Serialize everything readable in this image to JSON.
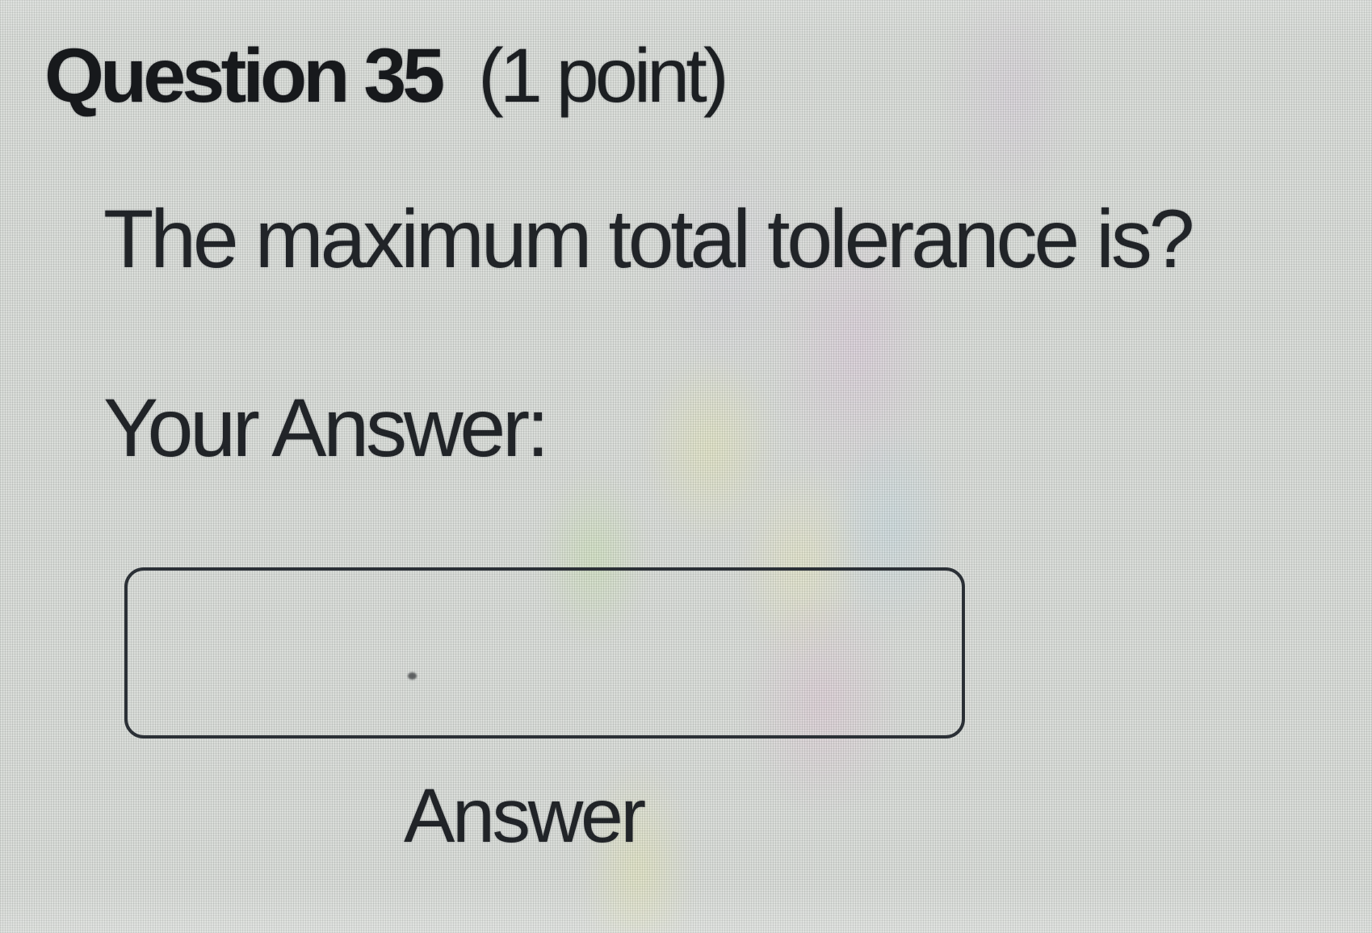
{
  "header": {
    "question_label": "Question 35",
    "points_label": "(1 point)"
  },
  "question": {
    "prompt": "The maximum total tolerance is?",
    "your_answer_label": "Your Answer:",
    "answer_value": "",
    "answer_caption": "Answer"
  },
  "colors": {
    "background": "#d5d8d4",
    "text": "#212428",
    "heading_text": "#17191c",
    "answer_box_border": "#2b3036"
  }
}
